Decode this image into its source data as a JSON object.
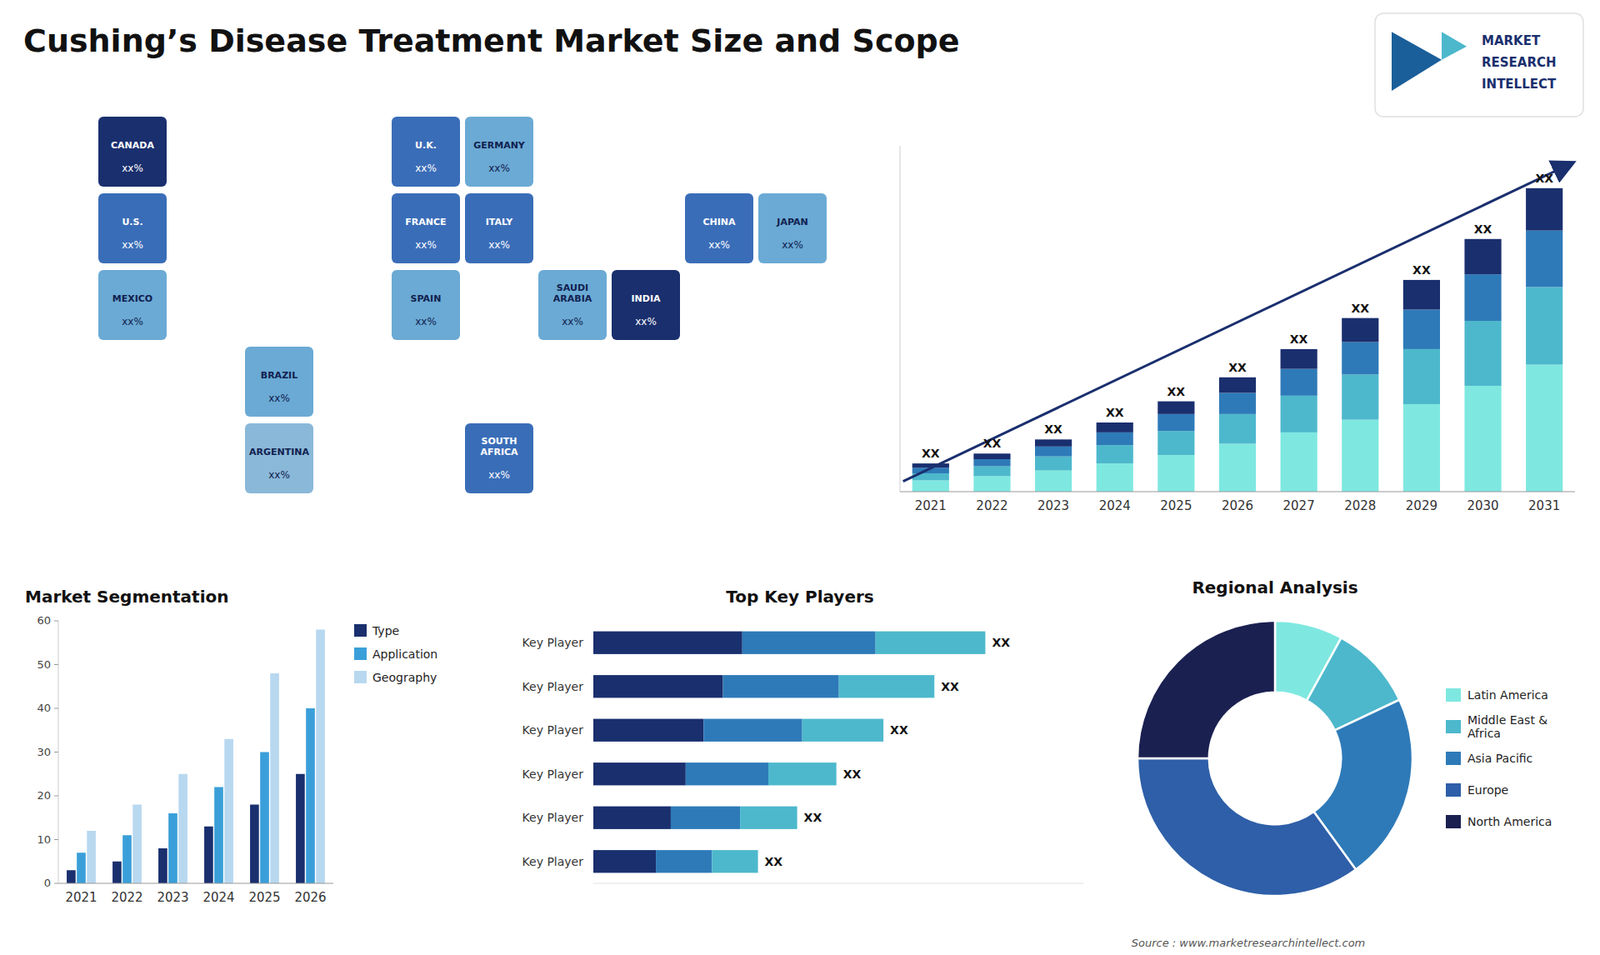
{
  "chart_data": [
    {
      "type": "map",
      "title": "Cushing’s Disease Treatment Market Size and Scope",
      "categories": [
        "CANADA",
        "U.S.",
        "MEXICO",
        "BRAZIL",
        "ARGENTINA",
        "U.K.",
        "FRANCE",
        "SPAIN",
        "GERMANY",
        "ITALY",
        "SAUDI\nARABIA",
        "SOUTH\nAFRICA",
        "CHINA",
        "INDIA",
        "JAPAN"
      ],
      "colors": [
        "#1a2f6e",
        "#3a6db8",
        "#6baad4",
        "#6baad4",
        "#8ab8d8",
        "#3a6db8",
        "#3a6db8",
        "#6baad4",
        "#6baad4",
        "#3a6db8",
        "#6baad4",
        "#3a6db8",
        "#3a6db8",
        "#1a2f6e",
        "#6baad4"
      ],
      "annotations": [
        "xx%",
        "xx%",
        "xx%",
        "xx%",
        "xx%",
        "xx%",
        "xx%",
        "xx%",
        "xx%",
        "xx%",
        "xx%",
        "xx%",
        "xx%",
        "xx%",
        "xx%"
      ]
    },
    {
      "type": "bar",
      "stacked": true,
      "categories": [
        "2021",
        "2022",
        "2023",
        "2024",
        "2025",
        "2026",
        "2027",
        "2028",
        "2029",
        "2030",
        "2031"
      ],
      "series": [
        {
          "color": "#7ee8e0",
          "values": [
            0.8,
            1.1,
            1.5,
            2.0,
            2.6,
            3.4,
            4.2,
            5.1,
            6.2,
            7.5,
            9.0
          ]
        },
        {
          "color": "#4db8cc",
          "values": [
            0.5,
            0.7,
            1.0,
            1.3,
            1.7,
            2.1,
            2.6,
            3.2,
            3.9,
            4.6,
            5.5
          ]
        },
        {
          "color": "#2e7ab8",
          "values": [
            0.4,
            0.5,
            0.7,
            0.9,
            1.2,
            1.5,
            1.9,
            2.3,
            2.8,
            3.3,
            4.0
          ]
        },
        {
          "color": "#1a2f6e",
          "values": [
            0.3,
            0.4,
            0.5,
            0.7,
            0.9,
            1.1,
            1.4,
            1.7,
            2.1,
            2.5,
            3.0
          ],
          "value_labels": [
            "XX",
            "XX",
            "XX",
            "XX",
            "XX",
            "XX",
            "XX",
            "XX",
            "XX",
            "XX",
            "XX"
          ]
        }
      ],
      "ylim": [
        0,
        24.5
      ],
      "tick_labels": "x",
      "grid": false,
      "annotations": [
        "MARKET",
        "RESEARCH",
        "INTELLECT"
      ]
    },
    {
      "type": "bar",
      "title": "Market Segmentation",
      "categories": [
        "2021",
        "2022",
        "2023",
        "2024",
        "2025",
        "2026"
      ],
      "series": [
        {
          "name": "Type",
          "color": "#1a2f6e",
          "values": [
            3,
            5,
            8,
            13,
            18,
            25
          ]
        },
        {
          "name": "Application",
          "color": "#3a9fd9",
          "values": [
            7,
            11,
            16,
            22,
            30,
            40
          ]
        },
        {
          "name": "Geography",
          "color": "#b8d8f0",
          "values": [
            12,
            18,
            25,
            33,
            48,
            58
          ]
        }
      ],
      "ylim": [
        0,
        60
      ],
      "yticks": [
        0,
        10,
        20,
        30,
        40,
        50,
        60
      ],
      "legend": "right",
      "grid": false
    },
    {
      "type": "bar",
      "orientation": "horizontal",
      "stacked": true,
      "title": "Top Key Players",
      "categories": [
        "Key Player",
        "Key Player",
        "Key Player",
        "Key Player",
        "Key Player",
        "Key Player"
      ],
      "series": [
        {
          "color": "#1a2f6e",
          "values": [
            0.38,
            0.3306,
            0.2812,
            0.2356,
            0.1976,
            0.1596
          ]
        },
        {
          "color": "#2e7ab8",
          "values": [
            0.34,
            0.2958,
            0.2516,
            0.2108,
            0.1768,
            0.1428
          ]
        },
        {
          "color": "#4db8cc",
          "values": [
            0.28,
            0.2436,
            0.2072,
            0.1736,
            0.1456,
            0.1176
          ],
          "value_labels": [
            "XX",
            "XX",
            "XX",
            "XX",
            "XX",
            "XX"
          ]
        }
      ],
      "xlim": [
        0,
        1.25
      ],
      "tick_labels": "y",
      "grid": false
    },
    {
      "type": "donut",
      "title": "Regional Analysis",
      "categories": [
        "Latin America",
        "Middle East &\nAfrica",
        "Asia Pacific",
        "Europe",
        "North America"
      ],
      "values": [
        8,
        10,
        22,
        35,
        25
      ],
      "colors": [
        "#7ee8e0",
        "#4db8cc",
        "#2e7ab8",
        "#2e5fa8",
        "#1a2050"
      ],
      "legend": "right",
      "annotations": [
        "Source : www.marketresearchintellect.com"
      ]
    }
  ]
}
